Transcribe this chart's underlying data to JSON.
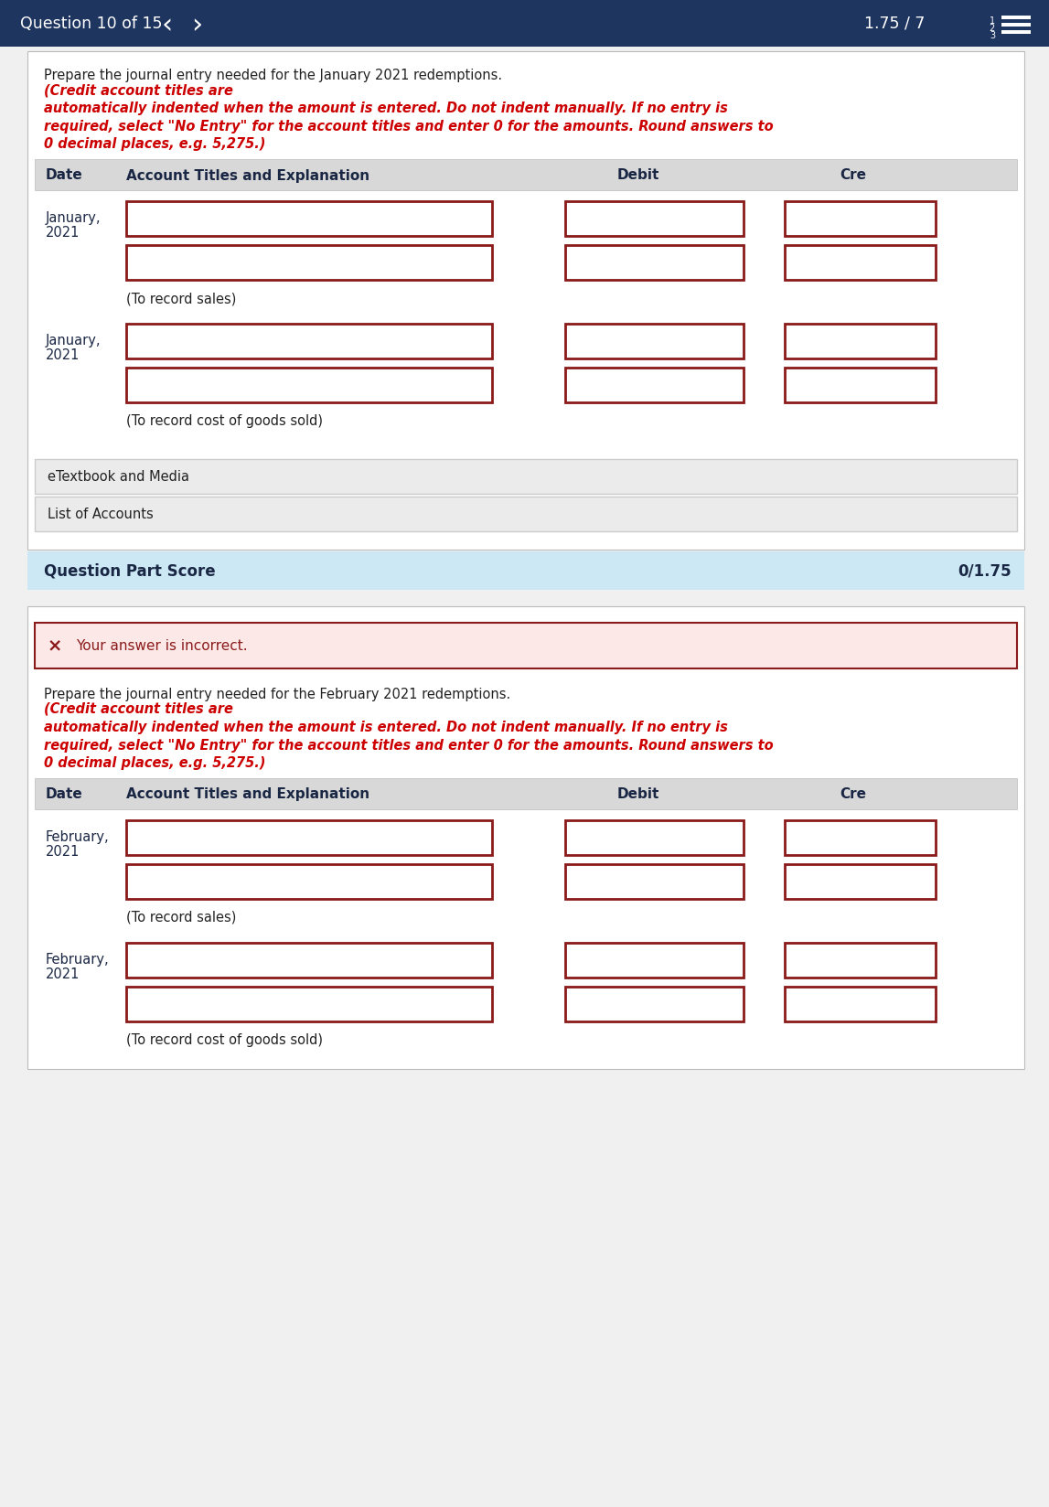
{
  "header_bg": "#1e3560",
  "header_text_color": "#ffffff",
  "header_left": "Question 10 of 15",
  "header_score": "1.75 / 7",
  "body_bg": "#f0f0f0",
  "page_bg": "#ffffff",
  "section1_intro_black": "Prepare the journal entry needed for the January 2021 redemptions. ",
  "section1_intro_red": "(Credit account titles are\nautomatically indented when the amount is entered. Do not indent manually. If no entry is\nrequired, select \"No Entry\" for the account titles and enter 0 for the amounts. Round answers to\n0 decimal places, e.g. 5,275.)",
  "table_header_bg": "#d8d8d8",
  "table_col1": "Date",
  "table_col2": "Account Titles and Explanation",
  "table_col3": "Debit",
  "table_col4": "Cre",
  "section1_note1": "(To record sales)",
  "section1_note2": "(To record cost of goods sold)",
  "buttons": [
    "eTextbook and Media",
    "List of Accounts"
  ],
  "score_bar_bg": "#cde8f5",
  "score_bar_text": "Question Part Score",
  "score_bar_score": "0/1.75",
  "error_bg": "#fde8e8",
  "error_border": "#8b1a1a",
  "error_icon_color": "#8b1a1a",
  "error_text": "Your answer is incorrect.",
  "section2_intro_black": "Prepare the journal entry needed for the February 2021 redemptions. ",
  "section2_intro_red": "(Credit account titles are\nautomatically indented when the amount is entered. Do not indent manually. If no entry is\nrequired, select \"No Entry\" for the account titles and enter 0 for the amounts. Round answers to\n0 decimal places, e.g. 5,275.)",
  "section2_note1": "(To record sales)",
  "section2_note2": "(To record cost of goods sold)",
  "input_border_color": "#8b1a1a",
  "input_fill_color": "#ffffff",
  "text_dark": "#1a2744",
  "text_black": "#222222",
  "red_color": "#cc0000"
}
